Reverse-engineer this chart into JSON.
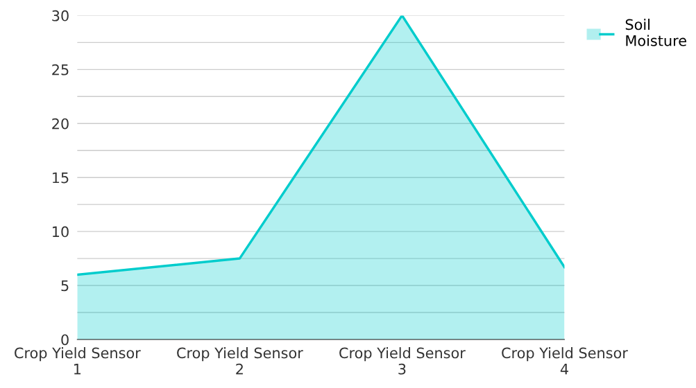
{
  "chart_data": {
    "type": "area",
    "categories": [
      "Crop Yield Sensor 1",
      "Crop Yield Sensor 2",
      "Crop Yield Sensor 3",
      "Crop Yield Sensor 4"
    ],
    "series": [
      {
        "name": "Soil Moisture",
        "color": "#00cccc",
        "values": [
          6,
          7.5,
          30,
          6.7
        ]
      }
    ],
    "ylim": [
      0,
      30
    ],
    "yticks": [
      0,
      {
        "value": 2.5,
        "label": null
      },
      5,
      {
        "value": 7.5,
        "label": null
      },
      10,
      {
        "value": 12.5,
        "label": null
      },
      15,
      {
        "value": 17.5,
        "label": null
      },
      20,
      {
        "value": 22.5,
        "label": null
      },
      25,
      {
        "value": 27.5,
        "label": null
      },
      30
    ],
    "grid": "y",
    "legend": "top right"
  }
}
